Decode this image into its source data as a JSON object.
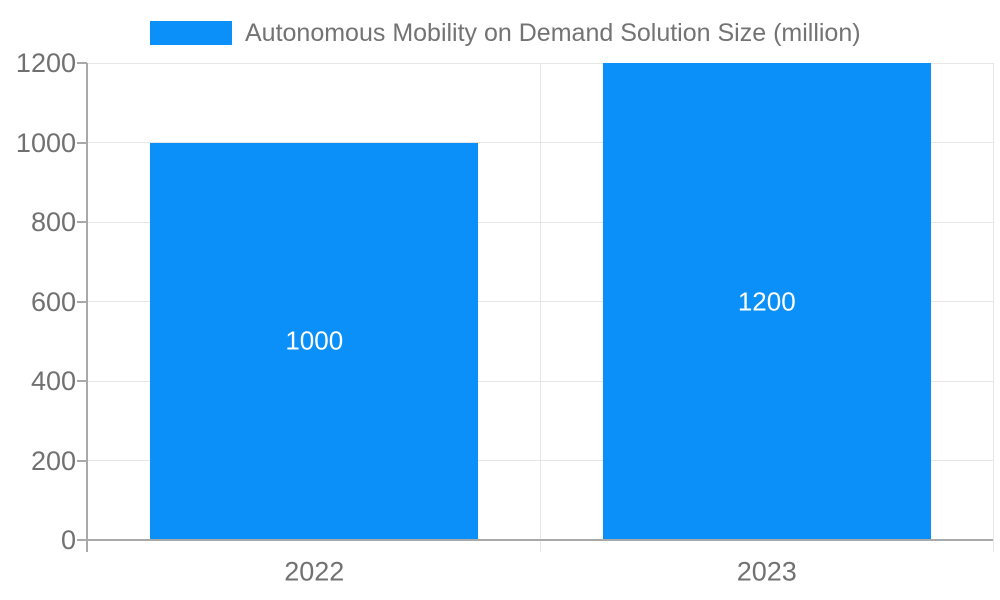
{
  "chart_data": {
    "type": "bar",
    "title": "Autonomous Mobility on Demand Solution Size (million)",
    "legend": {
      "label": "Autonomous Mobility on Demand Solution Size (million)",
      "position": "top"
    },
    "categories": [
      "2022",
      "2023"
    ],
    "series": [
      {
        "name": "Autonomous Mobility on Demand Solution Size (million)",
        "values": [
          1000,
          1200
        ],
        "data_labels": [
          "1000",
          "1200"
        ],
        "label_position": "inside-center",
        "color": "#0a90f8"
      }
    ],
    "xlabel": "",
    "ylabel": "",
    "ylim": [
      0,
      1200
    ],
    "y_tick_interval": 200,
    "y_tick_labels": [
      "0",
      "200",
      "400",
      "600",
      "800",
      "1000",
      "1200"
    ],
    "grid": "on",
    "background": "#ffffff"
  },
  "colors": {
    "bar": "#0a90f8",
    "grid_line": "#e6e6e6",
    "axis_line": "#a9a9a9",
    "tick_label": "#717171",
    "legend_text": "#737373",
    "data_label": "#ffffff",
    "background": "#ffffff"
  }
}
